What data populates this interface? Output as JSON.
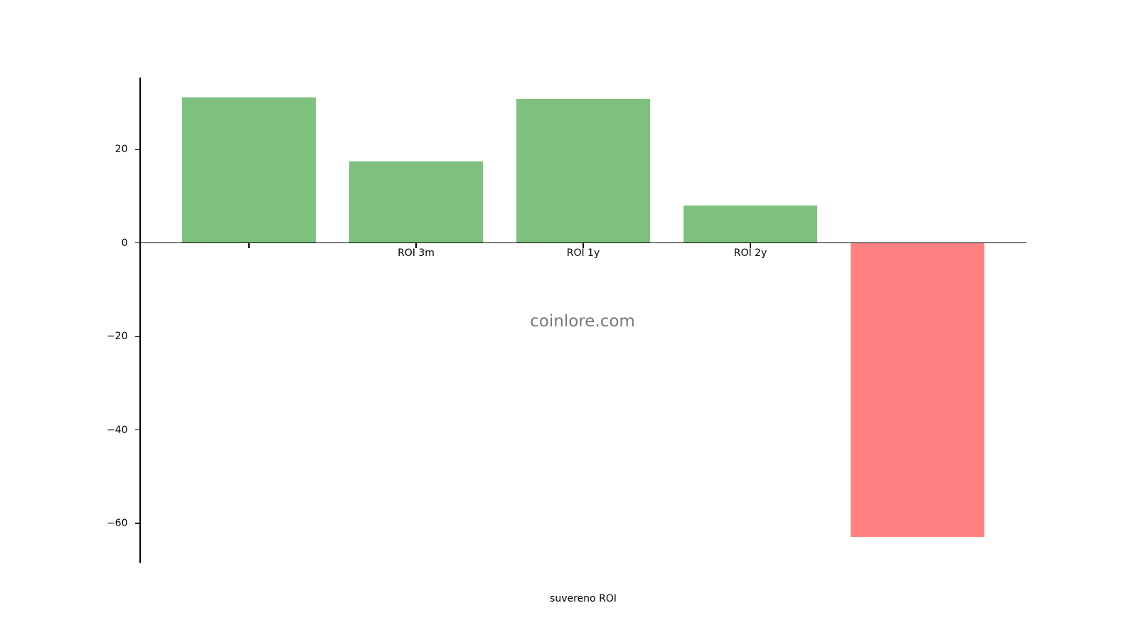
{
  "page": {
    "background": "#ffffff"
  },
  "chart_data": {
    "type": "bar",
    "title": "",
    "xlabel": "suvereno ROI",
    "ylabel": "",
    "watermark": "coinlore.com",
    "categories": [
      "",
      "ROI 3m",
      "ROI 1y",
      "ROI 2y",
      ""
    ],
    "values": [
      31.1,
      17.5,
      30.8,
      8.0,
      -62.8
    ],
    "yticks": [
      {
        "value": 20,
        "label": "20"
      },
      {
        "value": 0,
        "label": "0"
      },
      {
        "value": -20,
        "label": "−20"
      },
      {
        "value": -40,
        "label": "−40"
      },
      {
        "value": -60,
        "label": "−60"
      }
    ],
    "ylim": [
      -68.5,
      35.4
    ],
    "x_tick_marks_at": [
      0,
      1,
      2,
      3
    ],
    "grid": false,
    "legend": "none",
    "colors": {
      "positive_bar": "#7ec17e",
      "negative_bar": "#ff8181",
      "axis": "#000000",
      "tick_label": "#000000",
      "watermark": "#777777",
      "xlabel": "#000000"
    }
  }
}
